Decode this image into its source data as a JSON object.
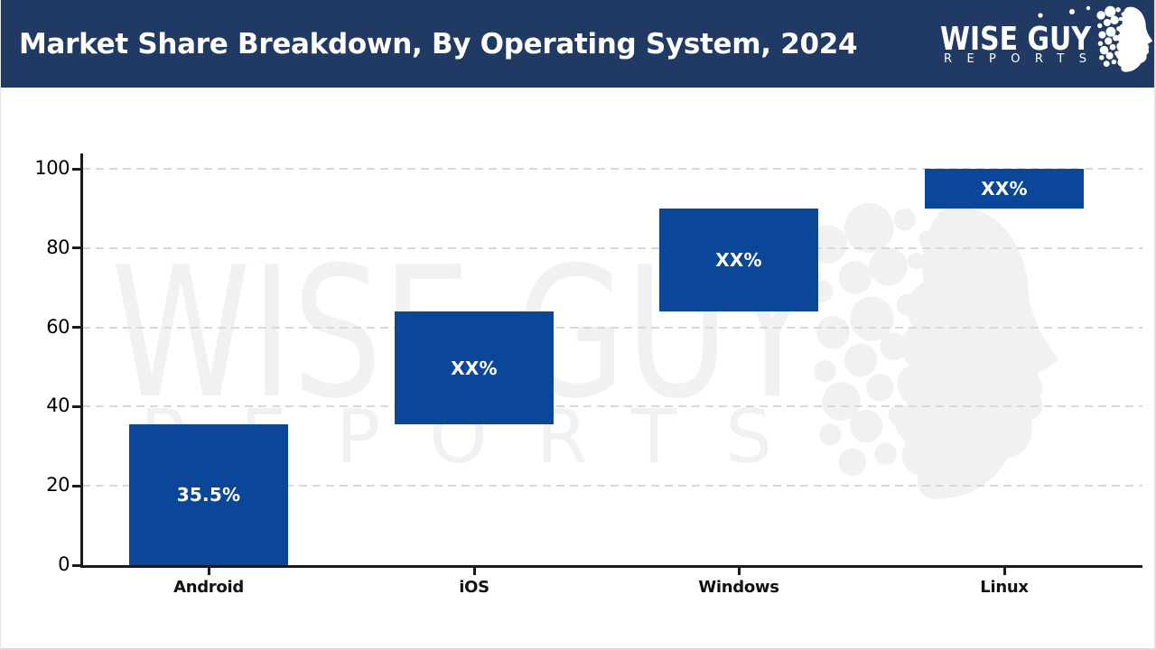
{
  "header": {
    "title": "Market Share Breakdown, By Operating System, 2024",
    "logo": {
      "brand_line1": "WISE GUY",
      "brand_line2": "REPORTS"
    }
  },
  "watermark": {
    "line1": "WISE GUY",
    "line2": "REPORTS"
  },
  "chart_data": {
    "type": "bar",
    "subtype": "waterfall",
    "title": "Market Share Breakdown, By Operating System, 2024",
    "categories": [
      "Android",
      "iOS",
      "Windows",
      "Linux"
    ],
    "series": [
      {
        "name": "Market share (%)",
        "segments": [
          {
            "category": "Android",
            "start": 0,
            "end": 35.5,
            "label": "35.5%"
          },
          {
            "category": "iOS",
            "start": 35.5,
            "end": 64,
            "label": "XX%"
          },
          {
            "category": "Windows",
            "start": 64,
            "end": 90,
            "label": "XX%"
          },
          {
            "category": "Linux",
            "start": 90,
            "end": 100,
            "label": "XX%"
          }
        ]
      }
    ],
    "xlabel": "",
    "ylabel": "",
    "ylim": [
      0,
      100
    ],
    "yticks": [
      0,
      20,
      40,
      60,
      80,
      100
    ],
    "grid": "horizontal-dashed",
    "legend": "none",
    "bar_color": "#0C4699"
  },
  "colors": {
    "header_bg": "#203A64",
    "bar": "#0C4699",
    "bar_label": "#FFFFFF",
    "grid": "#D9D9D9",
    "axis": "#1A1A1A",
    "watermark": "#F0F1F3"
  }
}
